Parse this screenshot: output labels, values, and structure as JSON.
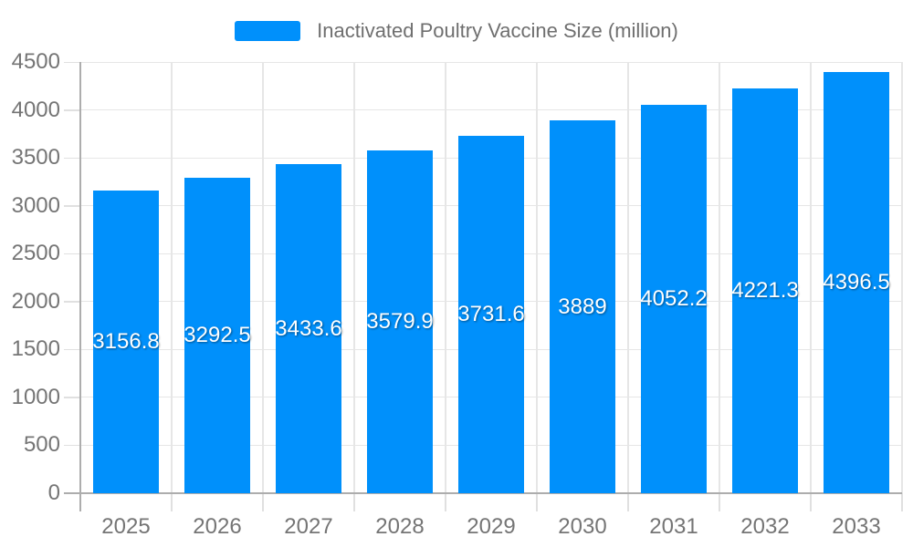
{
  "legend": {
    "label": "Inactivated Poultry Vaccine Size (million)"
  },
  "chart_data": {
    "type": "bar",
    "title": "",
    "series_name": "Inactivated Poultry Vaccine Size (million)",
    "categories": [
      "2025",
      "2026",
      "2027",
      "2028",
      "2029",
      "2030",
      "2031",
      "2032",
      "2033"
    ],
    "values": [
      3156.8,
      3292.5,
      3433.6,
      3579.9,
      3731.6,
      3889,
      4052.2,
      4221.3,
      4396.5
    ],
    "data_labels": [
      "3156.8",
      "3292.5",
      "3433.6",
      "3579.9",
      "3731.6",
      "3889",
      "4052.2",
      "4221.3",
      "4396.5"
    ],
    "ylim": [
      0,
      4500
    ],
    "ytick_step": 500,
    "yticks": [
      0,
      500,
      1000,
      1500,
      2000,
      2500,
      3000,
      3500,
      4000,
      4500
    ],
    "xlabel": "",
    "ylabel": "",
    "grid": "horizontal and vertical light gridlines",
    "legend_position": "top-center",
    "data_label_position": "center-of-bar",
    "colors": {
      "bar": "#0090FB",
      "bar_label": "#FFFFFF",
      "axis_label": "#757575",
      "legend_label": "#6F6F6F",
      "gridline": "#E6E6E6",
      "tick": "#E0E0E0",
      "axis_line": "#ADADAD",
      "background": "#FFFFFF"
    }
  }
}
